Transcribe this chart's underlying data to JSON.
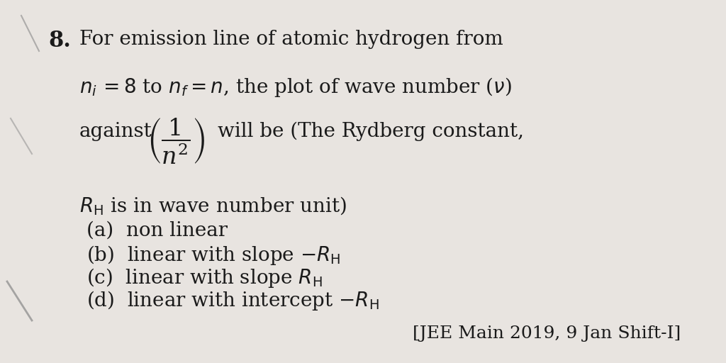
{
  "background_color": "#e8e4e0",
  "text_color": "#1a1a1a",
  "question_number": "8.",
  "line1": "For emission line of atomic hydrogen from",
  "line2": "$n_i\\,{=}8$ to $n_f{=}n$, the plot of wave number ($\\nu$)",
  "line3_pre": "against",
  "line3_frac": "$\\left(\\dfrac{1}{n^2}\\right)$",
  "line3_post": "will be (The Rydberg constant,",
  "line4": "$R_\\mathrm{H}$ is in wave number unit)",
  "option_a": "(a)  non linear",
  "option_b": "(b)  linear with slope $-R_\\mathrm{H}$",
  "option_c": "(c)  linear with slope $R_\\mathrm{H}$",
  "option_d": "(d)  linear with intercept $-R_\\mathrm{H}$",
  "footer": "[JEE Main 2019, 9 Jan Shift-I]",
  "main_fontsize": 20,
  "footer_fontsize": 18,
  "fig_width": 10.24,
  "fig_height": 5.12,
  "dpi": 100
}
